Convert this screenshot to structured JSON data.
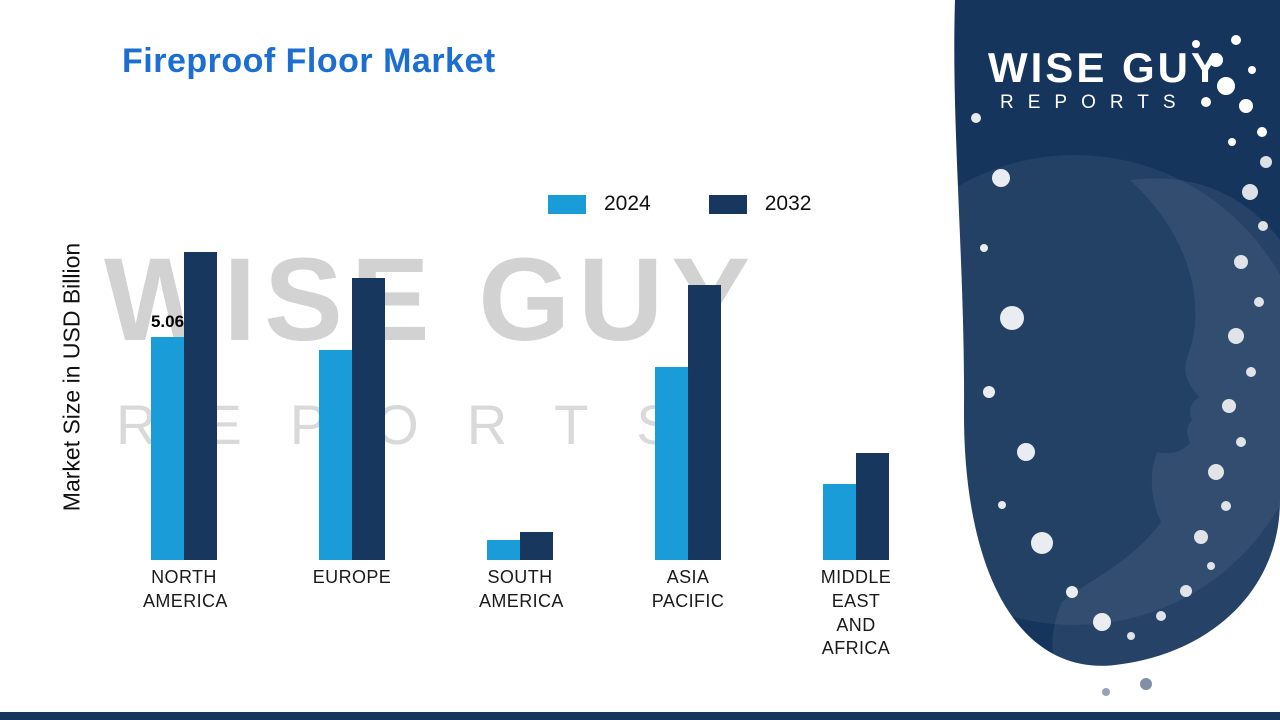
{
  "page": {
    "title": "Fireproof Floor Market"
  },
  "logo": {
    "line1": "WISE GUY",
    "line2": "REPORTS"
  },
  "watermark": {
    "line1": "WISE GUY",
    "line2": "REPORTS"
  },
  "colors": {
    "title_blue": "#1c6fd1",
    "panel_navy": "#16355c",
    "bar_2024": "#199cd8",
    "bar_2032": "#17375e",
    "watermark_gray": "#d2d2d2"
  },
  "chart_data": {
    "type": "bar",
    "categories": [
      "NORTH AMERICA",
      "EUROPE",
      "SOUTH AMERICA",
      "ASIA PACIFIC",
      "MIDDLE EAST AND AFRICA"
    ],
    "series": [
      {
        "name": "2024",
        "color": "#199cd8",
        "values": [
          5.06,
          4.77,
          0.45,
          4.38,
          1.72
        ]
      },
      {
        "name": "2032",
        "color": "#17375e",
        "values": [
          7.0,
          6.42,
          0.64,
          6.26,
          2.43
        ]
      }
    ],
    "annotations": [
      {
        "category_index": 0,
        "series_index": 0,
        "text": "5.06"
      }
    ],
    "title": "",
    "xlabel": "",
    "ylabel": "Market Size in USD Billion",
    "ylim": [
      0,
      7.0
    ],
    "grid": false,
    "legend_position": "top"
  }
}
